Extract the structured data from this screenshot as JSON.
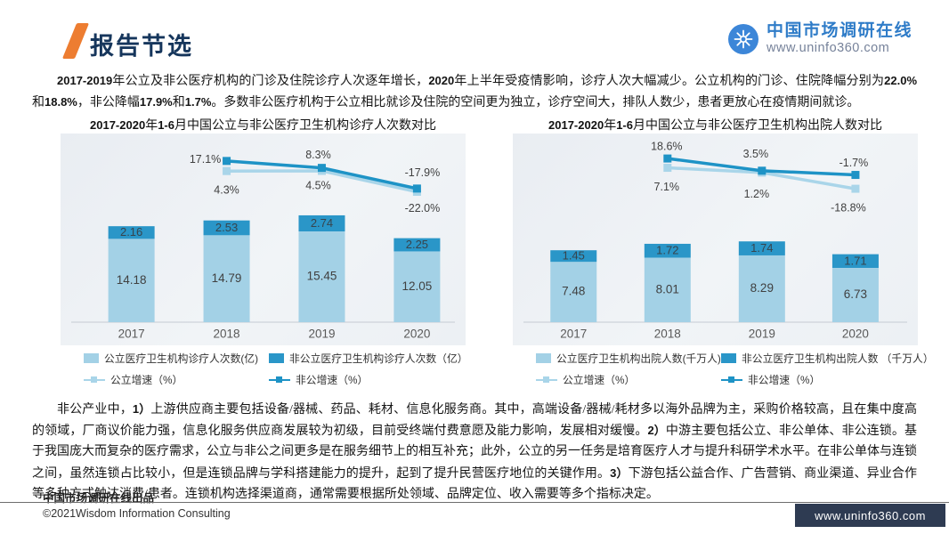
{
  "header": {
    "page_title": "报告节选",
    "logo": {
      "name": "中国市场调研在线",
      "url": "www.uninfo360.com"
    }
  },
  "intro_paragraph": [
    {
      "t": "2017-2019",
      "b": true
    },
    {
      "t": "年公立及非公医疗机构的门诊及住院诊疗人次逐年增长，",
      "b": false
    },
    {
      "t": "2020",
      "b": true
    },
    {
      "t": "年上半年受疫情影响，诊疗人次大幅减少。公立机构的门诊、住院降幅分别为",
      "b": false
    },
    {
      "t": "22.0%",
      "b": true
    },
    {
      "t": "和",
      "b": false
    },
    {
      "t": "18.8%",
      "b": true
    },
    {
      "t": "，非公降幅",
      "b": false
    },
    {
      "t": "17.9%",
      "b": true
    },
    {
      "t": "和",
      "b": false
    },
    {
      "t": "1.7%",
      "b": true
    },
    {
      "t": "。多数非公医疗机构于公立相比就诊及住院的空间更为独立，诊疗空间大，排队人数少，患者更放心在疫情期间就诊。",
      "b": false
    }
  ],
  "chart_data": [
    {
      "type": "bar+line combo, stacked bars",
      "title": "2017-2020年1-6月中国公立与非公医疗卫生机构诊疗人次数对比",
      "title_segments": [
        {
          "t": "2017-2020",
          "b": true
        },
        {
          "t": "年",
          "b": false
        },
        {
          "t": "1-6",
          "b": true
        },
        {
          "t": "月中国公立与非公医疗卫生机构诊疗人次数对比",
          "b": false
        }
      ],
      "categories": [
        "2017",
        "2018",
        "2019",
        "2020"
      ],
      "series": [
        {
          "name": "公立医疗卫生机构诊疗人次数(亿)",
          "type": "bar",
          "values": [
            14.18,
            14.79,
            15.45,
            12.05
          ],
          "color": "#a3d1e6"
        },
        {
          "name": "非公立医疗卫生机构诊疗人次数（亿）",
          "type": "bar",
          "values": [
            2.16,
            2.53,
            2.74,
            2.25
          ],
          "color": "#2a96c8"
        },
        {
          "name": "公立增速（%）",
          "type": "line",
          "values": [
            null,
            4.3,
            4.5,
            -22.0
          ],
          "color": "#a9d5e9"
        },
        {
          "name": "非公增速（%）",
          "type": "line",
          "values": [
            null,
            17.1,
            8.3,
            -17.9
          ],
          "color": "#1e93c6"
        }
      ],
      "stacked": true,
      "legend_position": "bottom",
      "grid": false,
      "y_axis_visible": false
    },
    {
      "type": "bar+line combo, stacked bars",
      "title": "2017-2020年1-6月中国公立与非公医疗卫生机构出院人数对比",
      "title_segments": [
        {
          "t": "2017-2020",
          "b": true
        },
        {
          "t": "年",
          "b": false
        },
        {
          "t": "1-6",
          "b": true
        },
        {
          "t": "月中国公立与非公医疗卫生机构出院人数对比",
          "b": false
        }
      ],
      "categories": [
        "2017",
        "2018",
        "2019",
        "2020"
      ],
      "series": [
        {
          "name": "公立医疗卫生机构出院人数(千万人)",
          "type": "bar",
          "values": [
            7.48,
            8.01,
            8.29,
            6.73
          ],
          "color": "#a3d1e6"
        },
        {
          "name": "非公立医疗卫生机构出院人数 （千万人）",
          "type": "bar",
          "values": [
            1.45,
            1.72,
            1.74,
            1.71
          ],
          "color": "#2a96c8"
        },
        {
          "name": "公立增速（%）",
          "type": "line",
          "values": [
            null,
            7.1,
            1.2,
            -18.8
          ],
          "color": "#a9d5e9"
        },
        {
          "name": "非公增速（%）",
          "type": "line",
          "values": [
            null,
            18.6,
            3.5,
            -1.7
          ],
          "color": "#1e93c6"
        }
      ],
      "stacked": true,
      "legend_position": "bottom",
      "grid": false,
      "y_axis_visible": false
    }
  ],
  "analysis_paragraph": [
    {
      "t": "非公产业中，",
      "b": false
    },
    {
      "t": "1）",
      "b": true
    },
    {
      "t": "上游供应商主要包括设备/器械、药品、耗材、信息化服务商。其中，高端设备/器械/耗材多以海外品牌为主，采购价格较高，且在集中度高的领域，厂商议价能力强，信息化服务供应商发展较为初级，目前受终端付费意愿及能力影响，发展相对缓慢。",
      "b": false
    },
    {
      "t": "2）",
      "b": true
    },
    {
      "t": "中游主要包括公立、非公单体、非公连锁。基于我国庞大而复杂的医疗需求，公立与非公之间更多是在服务细节上的相互补充；此外，公立的另一任务是培育医疗人才与提升科研学术水平。在非公单体与连锁之间，虽然连锁占比较小，但是连锁品牌与学科搭建能力的提升，起到了提升民营医疗地位的关键作用。",
      "b": false
    },
    {
      "t": "3）",
      "b": true
    },
    {
      "t": "下游包括公益合作、广告营销、商业渠道、异业合作等多种方式触达消费/患者。连锁机构选择渠道商，通常需要根据所处领域、品牌定位、收入需要等多个指标决定。",
      "b": false
    }
  ],
  "footer": {
    "produced_by": "中国市场调研在线出品",
    "copyright": "©2021Wisdom Information Consulting",
    "site_badge": "www.uninfo360.com"
  },
  "colors": {
    "accent_orange": "#ed7d31",
    "title_navy": "#16365c",
    "logo_blue": "#3c86d8",
    "bar_public": "#a3d1e6",
    "bar_nonpublic": "#2a96c8",
    "line_public": "#a9d5e9",
    "line_nonpublic": "#1e93c6",
    "plot_background": "#edf0f4",
    "footer_bar": "#2e3b52"
  }
}
